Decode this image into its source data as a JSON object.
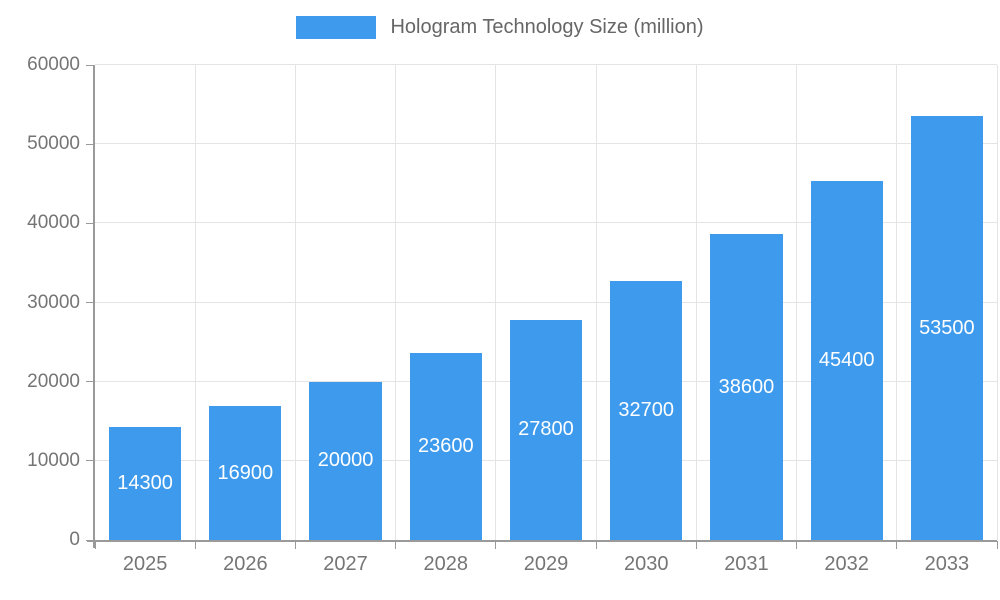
{
  "colors": {
    "bar": "#3d9aec",
    "grid": "#e4e4e4",
    "axis": "#9a9a9a",
    "axis_text": "#757575",
    "legend_text": "#666666",
    "bar_label_text": "#ffffff",
    "background": "#ffffff"
  },
  "legend": {
    "label": "Hologram Technology Size (million)",
    "position": "top"
  },
  "chart_data": {
    "type": "bar",
    "title": "",
    "categories": [
      "2025",
      "2026",
      "2027",
      "2028",
      "2029",
      "2030",
      "2031",
      "2032",
      "2033"
    ],
    "series": [
      {
        "name": "Hologram Technology Size (million)",
        "values": [
          14300,
          16900,
          20000,
          23600,
          27800,
          32700,
          38600,
          45400,
          53500
        ]
      }
    ],
    "bar_labels": [
      14300,
      16900,
      20000,
      23600,
      27800,
      32700,
      38600,
      45400,
      53500
    ],
    "bar_label_position": "inside-center",
    "xlabel": "",
    "ylabel": "",
    "ylim": [
      0,
      60000
    ],
    "yticks": [
      0,
      10000,
      20000,
      30000,
      40000,
      50000,
      60000
    ],
    "grid": true,
    "legend_position": "top-center"
  }
}
